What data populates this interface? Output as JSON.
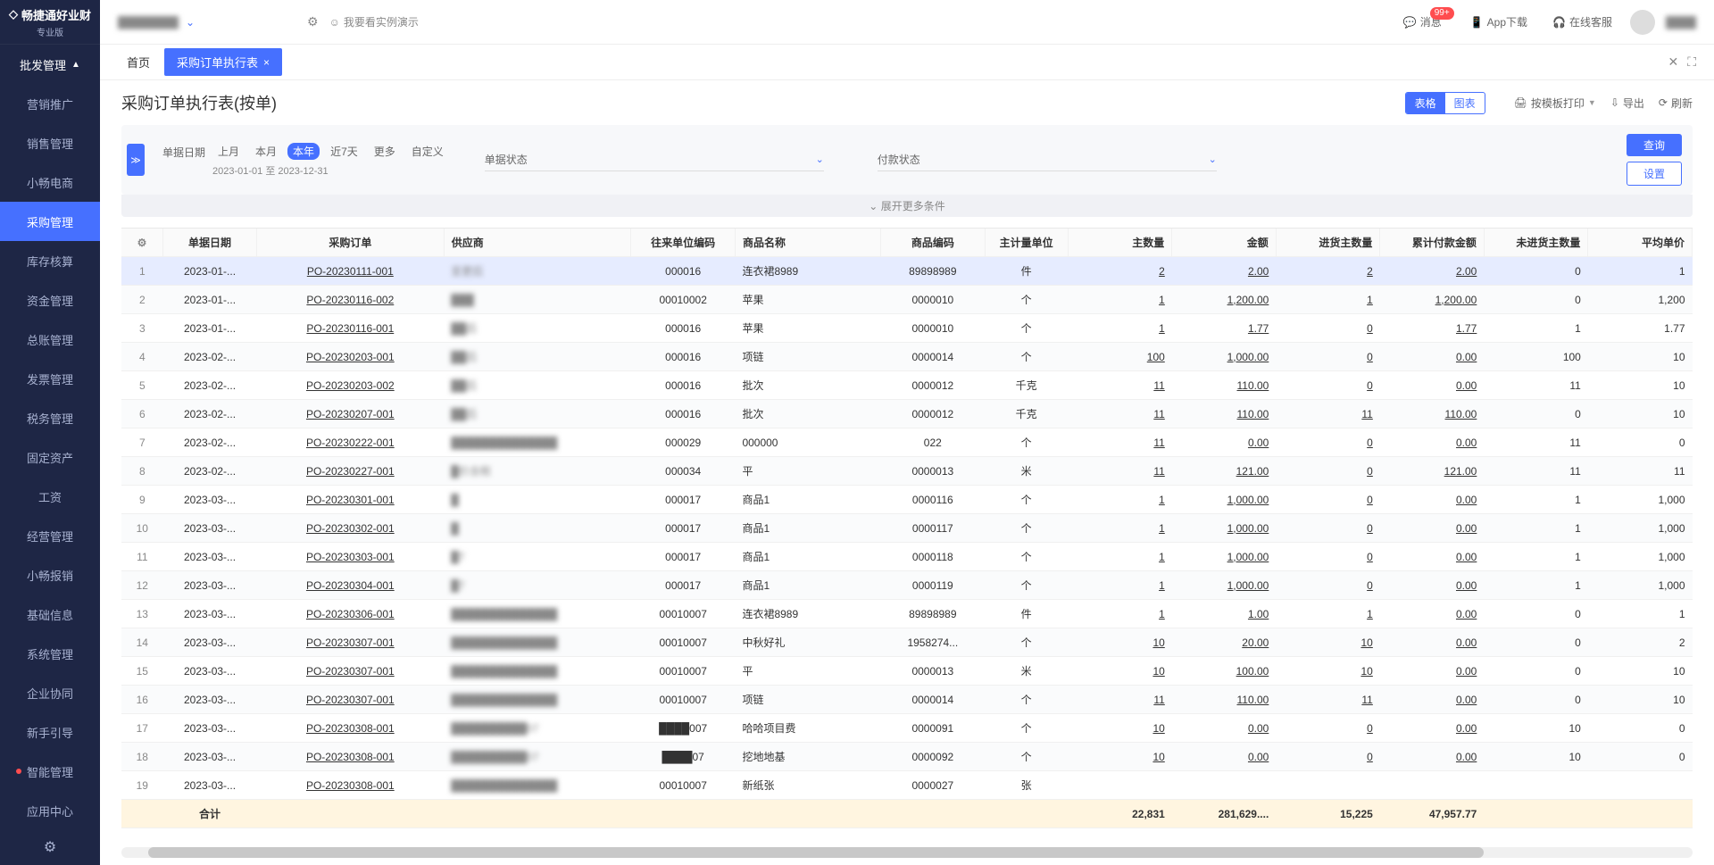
{
  "brand": {
    "name": "畅捷通好业财",
    "edition": "专业版"
  },
  "sidebar": {
    "items": [
      {
        "label": "批发管理",
        "expanded": true
      },
      {
        "label": "营销推广"
      },
      {
        "label": "销售管理"
      },
      {
        "label": "小畅电商"
      },
      {
        "label": "采购管理",
        "active": true
      },
      {
        "label": "库存核算"
      },
      {
        "label": "资金管理"
      },
      {
        "label": "总账管理"
      },
      {
        "label": "发票管理"
      },
      {
        "label": "税务管理"
      },
      {
        "label": "固定资产"
      },
      {
        "label": "工资"
      },
      {
        "label": "经营管理"
      },
      {
        "label": "小畅报销"
      },
      {
        "label": "基础信息"
      },
      {
        "label": "系统管理"
      },
      {
        "label": "企业协同"
      },
      {
        "label": "新手引导"
      },
      {
        "label": "智能管理",
        "dot": true
      },
      {
        "label": "应用中心"
      }
    ]
  },
  "topbar": {
    "org": "████████",
    "demo": "我要看实例演示",
    "msg": "消息",
    "msg_badge": "99+",
    "app": "App下载",
    "cs": "在线客服",
    "user": "████"
  },
  "tabs": {
    "items": [
      {
        "label": "首页"
      },
      {
        "label": "采购订单执行表",
        "active": true,
        "closable": true
      }
    ]
  },
  "page": {
    "title": "采购订单执行表(按单)",
    "view_table": "表格",
    "view_chart": "图表",
    "print": "按模板打印",
    "export": "导出",
    "refresh": "刷新"
  },
  "filter": {
    "date_label": "单据日期",
    "date_opts": [
      "上月",
      "本月",
      "本年",
      "近7天",
      "更多",
      "自定义"
    ],
    "date_active": "本年",
    "date_range": "2023-01-01 至 2023-12-31",
    "status_label": "单据状态",
    "pay_label": "付款状态",
    "query": "查询",
    "settings": "设置",
    "expand": "展开更多条件"
  },
  "table": {
    "columns": [
      "",
      "单据日期",
      "采购订单",
      "供应商",
      "往来单位编码",
      "商品名称",
      "商品编码",
      "主计量单位",
      "主数量",
      "金额",
      "进货主数量",
      "累计付款金额",
      "未进货主数量",
      "平均单价"
    ],
    "rows": [
      {
        "idx": 1,
        "date": "2023-01-...",
        "po": "PO-20230111-001",
        "supplier": "变更后",
        "ucode": "000016",
        "pname": "连衣裙8989",
        "pcode": "89898989",
        "unit": "件",
        "qty": "2",
        "amt": "2.00",
        "inqty": "2",
        "paid": "2.00",
        "unqty": "0",
        "avg": "1",
        "hl": true
      },
      {
        "idx": 2,
        "date": "2023-01-...",
        "po": "PO-20230116-002",
        "supplier": "███",
        "ucode": "00010002",
        "pname": "苹果",
        "pcode": "0000010",
        "unit": "个",
        "qty": "1",
        "amt": "1,200.00",
        "inqty": "1",
        "paid": "1,200.00",
        "unqty": "0",
        "avg": "1,200"
      },
      {
        "idx": 3,
        "date": "2023-01-...",
        "po": "PO-20230116-001",
        "supplier": "██后",
        "ucode": "000016",
        "pname": "苹果",
        "pcode": "0000010",
        "unit": "个",
        "qty": "1",
        "amt": "1.77",
        "inqty": "0",
        "paid": "1.77",
        "unqty": "1",
        "avg": "1.77"
      },
      {
        "idx": 4,
        "date": "2023-02-...",
        "po": "PO-20230203-001",
        "supplier": "██后",
        "ucode": "000016",
        "pname": "项链",
        "pcode": "0000014",
        "unit": "个",
        "qty": "100",
        "amt": "1,000.00",
        "inqty": "0",
        "paid": "0.00",
        "unqty": "100",
        "avg": "10"
      },
      {
        "idx": 5,
        "date": "2023-02-...",
        "po": "PO-20230203-002",
        "supplier": "██后",
        "ucode": "000016",
        "pname": "批次",
        "pcode": "0000012",
        "unit": "千克",
        "qty": "11",
        "amt": "110.00",
        "inqty": "0",
        "paid": "0.00",
        "unqty": "11",
        "avg": "10"
      },
      {
        "idx": 6,
        "date": "2023-02-...",
        "po": "PO-20230207-001",
        "supplier": "██后",
        "ucode": "000016",
        "pname": "批次",
        "pcode": "0000012",
        "unit": "千克",
        "qty": "11",
        "amt": "110.00",
        "inqty": "11",
        "paid": "110.00",
        "unqty": "0",
        "avg": "10"
      },
      {
        "idx": 7,
        "date": "2023-02-...",
        "po": "PO-20230222-001",
        "supplier": "██████████████",
        "ucode": "000029",
        "pname": "000000",
        "pcode": "022",
        "unit": "个",
        "qty": "11",
        "amt": "0.00",
        "inqty": "0",
        "paid": "0.00",
        "unqty": "11",
        "avg": "0"
      },
      {
        "idx": 8,
        "date": "2023-02-...",
        "po": "PO-20230227-001",
        "supplier": "█价含税",
        "ucode": "000034",
        "pname": "平",
        "pcode": "0000013",
        "unit": "米",
        "qty": "11",
        "amt": "121.00",
        "inqty": "0",
        "paid": "121.00",
        "unqty": "11",
        "avg": "11"
      },
      {
        "idx": 9,
        "date": "2023-03-...",
        "po": "PO-20230301-001",
        "supplier": "█",
        "ucode": "000017",
        "pname": "商品1",
        "pcode": "0000116",
        "unit": "个",
        "qty": "1",
        "amt": "1,000.00",
        "inqty": "0",
        "paid": "0.00",
        "unqty": "1",
        "avg": "1,000"
      },
      {
        "idx": 10,
        "date": "2023-03-...",
        "po": "PO-20230302-001",
        "supplier": "█",
        "ucode": "000017",
        "pname": "商品1",
        "pcode": "0000117",
        "unit": "个",
        "qty": "1",
        "amt": "1,000.00",
        "inqty": "0",
        "paid": "0.00",
        "unqty": "1",
        "avg": "1,000"
      },
      {
        "idx": 11,
        "date": "2023-03-...",
        "po": "PO-20230303-001",
        "supplier": "█T",
        "ucode": "000017",
        "pname": "商品1",
        "pcode": "0000118",
        "unit": "个",
        "qty": "1",
        "amt": "1,000.00",
        "inqty": "0",
        "paid": "0.00",
        "unqty": "1",
        "avg": "1,000"
      },
      {
        "idx": 12,
        "date": "2023-03-...",
        "po": "PO-20230304-001",
        "supplier": "█T",
        "ucode": "000017",
        "pname": "商品1",
        "pcode": "0000119",
        "unit": "个",
        "qty": "1",
        "amt": "1,000.00",
        "inqty": "0",
        "paid": "0.00",
        "unqty": "1",
        "avg": "1,000"
      },
      {
        "idx": 13,
        "date": "2023-03-...",
        "po": "PO-20230306-001",
        "supplier": "██████████████",
        "ucode": "00010007",
        "pname": "连衣裙8989",
        "pcode": "89898989",
        "unit": "件",
        "qty": "1",
        "amt": "1.00",
        "inqty": "1",
        "paid": "0.00",
        "unqty": "0",
        "avg": "1"
      },
      {
        "idx": 14,
        "date": "2023-03-...",
        "po": "PO-20230307-001",
        "supplier": "██████████████",
        "ucode": "00010007",
        "pname": "中秋好礼",
        "pcode": "1958274...",
        "unit": "个",
        "qty": "10",
        "amt": "20.00",
        "inqty": "10",
        "paid": "0.00",
        "unqty": "0",
        "avg": "2"
      },
      {
        "idx": 15,
        "date": "2023-03-...",
        "po": "PO-20230307-001",
        "supplier": "██████████████",
        "ucode": "00010007",
        "pname": "平",
        "pcode": "0000013",
        "unit": "米",
        "qty": "10",
        "amt": "100.00",
        "inqty": "10",
        "paid": "0.00",
        "unqty": "0",
        "avg": "10"
      },
      {
        "idx": 16,
        "date": "2023-03-...",
        "po": "PO-20230307-001",
        "supplier": "██████████████",
        "ucode": "00010007",
        "pname": "项链",
        "pcode": "0000014",
        "unit": "个",
        "qty": "11",
        "amt": "110.00",
        "inqty": "11",
        "paid": "0.00",
        "unqty": "0",
        "avg": "10"
      },
      {
        "idx": 17,
        "date": "2023-03-...",
        "po": "PO-20230308-001",
        "supplier": "██████████07",
        "ucode": "████007",
        "pname": "哈哈项目费",
        "pcode": "0000091",
        "unit": "个",
        "qty": "10",
        "amt": "0.00",
        "inqty": "0",
        "paid": "0.00",
        "unqty": "10",
        "avg": "0"
      },
      {
        "idx": 18,
        "date": "2023-03-...",
        "po": "PO-20230308-001",
        "supplier": "██████████07",
        "ucode": "████07",
        "pname": "挖地地基",
        "pcode": "0000092",
        "unit": "个",
        "qty": "10",
        "amt": "0.00",
        "inqty": "0",
        "paid": "0.00",
        "unqty": "10",
        "avg": "0"
      },
      {
        "idx": 19,
        "date": "2023-03-...",
        "po": "PO-20230308-001",
        "supplier": "██████████████",
        "ucode": "00010007",
        "pname": "新纸张",
        "pcode": "0000027",
        "unit": "张",
        "qty": "",
        "amt": "",
        "inqty": "",
        "paid": "",
        "unqty": "",
        "avg": ""
      }
    ],
    "total": {
      "label": "合计",
      "qty": "22,831",
      "amt": "281,629....",
      "inqty": "15,225",
      "paid": "47,957.77"
    }
  }
}
